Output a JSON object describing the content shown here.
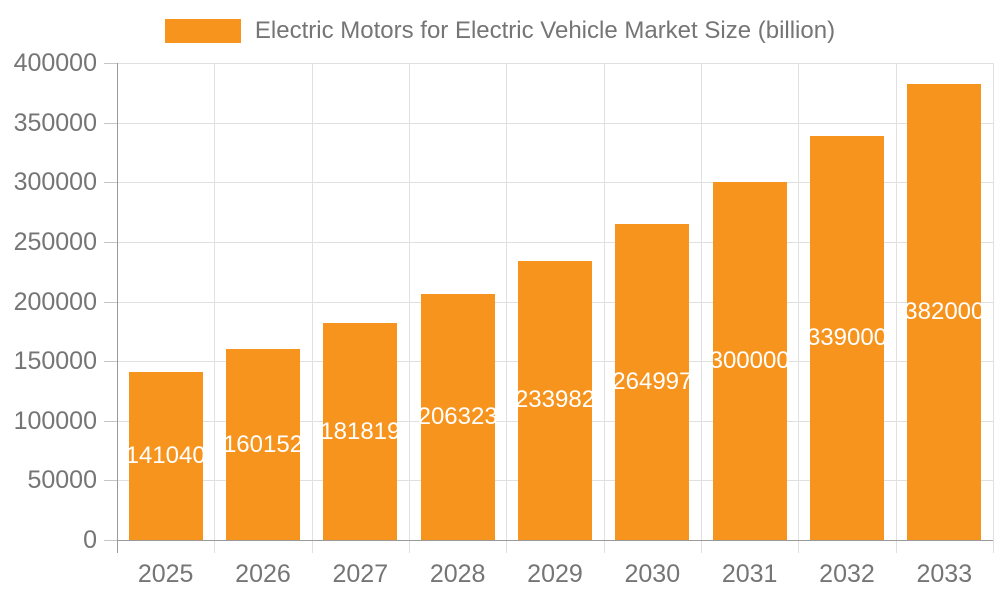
{
  "legend": {
    "label": "Electric Motors for Electric Vehicle Market Size (billion)",
    "swatch_color": "#f7941e"
  },
  "chart_data": {
    "type": "bar",
    "title": "Electric Motors for Electric Vehicle Market Size (billion)",
    "categories": [
      "2025",
      "2026",
      "2027",
      "2028",
      "2029",
      "2030",
      "2031",
      "2032",
      "2033"
    ],
    "values": [
      141040,
      160152,
      181819,
      206323,
      233982,
      264997,
      300000,
      339000,
      382000
    ],
    "value_labels": [
      "141040",
      "160152",
      "181819",
      "206323",
      "233982",
      "264997",
      "300000",
      "339000",
      "382000"
    ],
    "xlabel": "",
    "ylabel": "",
    "ylim": [
      0,
      400000
    ],
    "yticks": [
      0,
      50000,
      100000,
      150000,
      200000,
      250000,
      300000,
      350000,
      400000
    ],
    "ytick_labels": [
      "0",
      "50000",
      "100000",
      "150000",
      "200000",
      "250000",
      "300000",
      "350000",
      "400000"
    ],
    "grid": true,
    "legend_position": "top-center",
    "bar_color": "#f7941e",
    "value_label_color": "#ffffff"
  },
  "colors": {
    "background": "#ffffff",
    "bar": "#f7941e",
    "gridline": "#e0e0e0",
    "axis_line": "#999999",
    "tick_mark": "#c6c6c6",
    "tick_text": "#757575",
    "title_text": "#757575",
    "value_text": "#ffffff"
  }
}
